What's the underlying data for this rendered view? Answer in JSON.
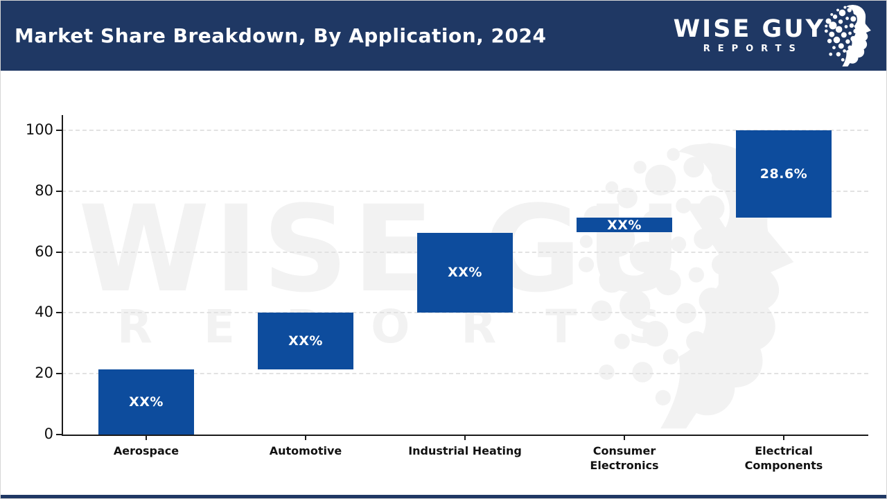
{
  "header": {
    "title": "Market Share Breakdown, By Application, 2024",
    "logo_line1": "WISE GUY",
    "logo_line2": "REPORTS"
  },
  "watermark": {
    "line1": "WISE GUY",
    "line2": "REPORTS"
  },
  "colors": {
    "header_bg": "#1f3864",
    "bar": "#0d4c9d",
    "on_bar_text": "#ffffff",
    "watermark": "#f2f2f2",
    "gridline": "#e2e2e2",
    "axis": "#1a1a1a",
    "background": "#ffffff"
  },
  "chart_data": {
    "type": "bar",
    "subtype": "waterfall",
    "title": "Market Share Breakdown, By Application, 2024",
    "categories": [
      "Aerospace",
      "Automotive",
      "Industrial Heating",
      "Consumer Electronics",
      "Electrical Components"
    ],
    "category_label_lines": [
      [
        "Aerospace"
      ],
      [
        "Automotive"
      ],
      [
        "Industrial Heating"
      ],
      [
        "Consumer",
        "Electronics"
      ],
      [
        "Electrical",
        "Components"
      ]
    ],
    "segments": [
      {
        "category": "Aerospace",
        "start": 0,
        "end": 21.4,
        "label": "XX%"
      },
      {
        "category": "Automotive",
        "start": 21.4,
        "end": 40.0,
        "label": "XX%"
      },
      {
        "category": "Industrial Heating",
        "start": 40.0,
        "end": 66.4,
        "label": "XX%"
      },
      {
        "category": "Consumer Electronics",
        "start": 66.4,
        "end": 71.4,
        "label": "XX%"
      },
      {
        "category": "Electrical Components",
        "start": 71.4,
        "end": 100.0,
        "label": "28.6%"
      }
    ],
    "y_ticks": [
      0,
      20,
      40,
      60,
      80,
      100
    ],
    "ylim": [
      0,
      105
    ],
    "xlabel": "",
    "ylabel": "",
    "grid": "horizontal-dashed",
    "legend": "none"
  }
}
